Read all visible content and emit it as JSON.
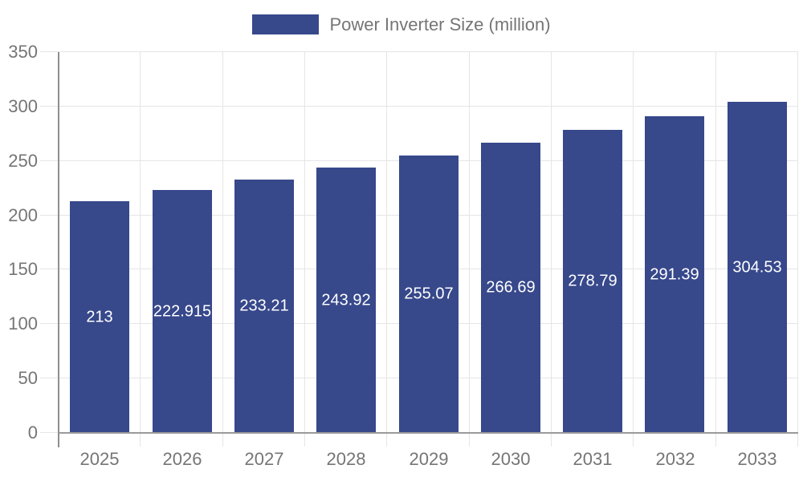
{
  "legend": {
    "label": "Power Inverter Size (million)"
  },
  "chart_data": {
    "type": "bar",
    "title": "Power Inverter Size (million)",
    "series_name": "Power Inverter Size (million)",
    "categories": [
      "2025",
      "2026",
      "2027",
      "2028",
      "2029",
      "2030",
      "2031",
      "2032",
      "2033"
    ],
    "values": [
      213,
      222.915,
      233.21,
      243.92,
      255.07,
      266.69,
      278.79,
      291.39,
      304.53
    ],
    "value_labels": [
      "213",
      "222.915",
      "233.21",
      "243.92",
      "255.07",
      "266.69",
      "278.79",
      "291.39",
      "304.53"
    ],
    "xlabel": "",
    "ylabel": "",
    "ylim": [
      0,
      350
    ],
    "yticks": [
      0,
      50,
      100,
      150,
      200,
      250,
      300,
      350
    ],
    "grid": true,
    "legend_position": "top-center",
    "colors": {
      "bar": "#37488b",
      "value_label": "#ffffff",
      "axis_text": "#757575",
      "gridline": "#e5e5e5",
      "axis_line": "#8f8f8f"
    }
  }
}
